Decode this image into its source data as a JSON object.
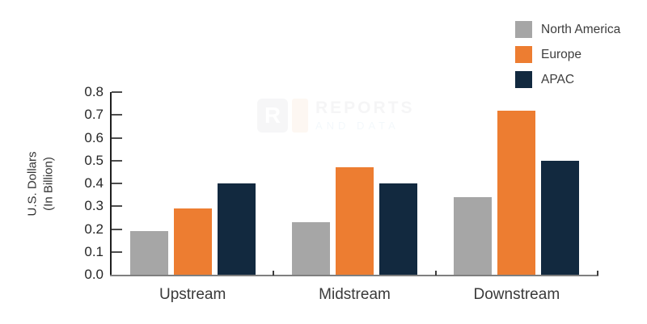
{
  "colors": {
    "north_america": "#a6a6a6",
    "europe": "#ed7d31",
    "apac": "#12293f",
    "y_axis_line": "#1f1f1f",
    "x_axis_line": "#7f7f7f",
    "tick_label": "#262626",
    "category_label": "#3a3a3a",
    "legend_label": "#3d3d3d"
  },
  "y_axis": {
    "title_line1": "U.S. Dollars",
    "title_line2": "(In Billion)",
    "tick_labels": [
      "0.0",
      "0.1",
      "0.2",
      "0.3",
      "0.4",
      "0.5",
      "0.6",
      "0.7",
      "0.8"
    ]
  },
  "watermark": {
    "monogram": "R",
    "line1": "REPORTS",
    "line2": "AND DATA"
  },
  "chart_data": {
    "type": "bar",
    "title": "",
    "xlabel": "",
    "ylabel": "U.S. Dollars (In Billion)",
    "categories": [
      "Upstream",
      "Midstream",
      "Downstream"
    ],
    "series": [
      {
        "name": "North America",
        "color": "#a6a6a6",
        "values": [
          0.19,
          0.23,
          0.34
        ]
      },
      {
        "name": "Europe",
        "color": "#ed7d31",
        "values": [
          0.29,
          0.47,
          0.72
        ]
      },
      {
        "name": "APAC",
        "color": "#12293f",
        "values": [
          0.4,
          0.4,
          0.5
        ]
      }
    ],
    "ylim": [
      0,
      0.8
    ],
    "ytick_step": 0.1,
    "grid": false,
    "legend_position": "top-right"
  }
}
